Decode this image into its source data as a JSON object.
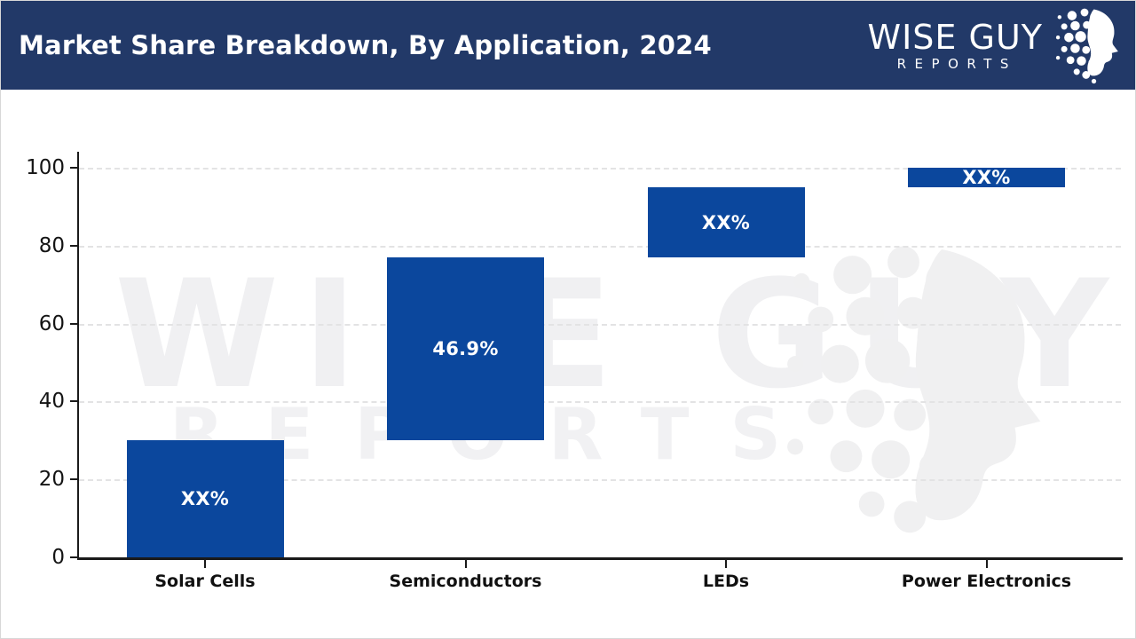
{
  "header": {
    "title": "Market Share Breakdown, By Application, 2024",
    "logo": {
      "line1": "WISE GUY",
      "line2": "REPORTS"
    }
  },
  "watermark": {
    "line1": "WISE GUY",
    "line2": "REPORTS"
  },
  "colors": {
    "header_bg": "#223968",
    "bar_fill": "#0b479d",
    "bar_label_text": "#ffffff",
    "gridline": "#e3e3e4",
    "axis": "#1a1a1a",
    "watermark": "#f0f0f2",
    "canvas_border": "#d8d8d8"
  },
  "chart_data": {
    "type": "bar",
    "subtype": "waterfall",
    "title": "Market Share Breakdown, By Application, 2024",
    "categories": [
      "Solar Cells",
      "Semiconductors",
      "LEDs",
      "Power Electronics"
    ],
    "bars": [
      {
        "category": "Solar Cells",
        "start": 0,
        "end": 30.1,
        "label": "XX%"
      },
      {
        "category": "Semiconductors",
        "start": 30.1,
        "end": 77.0,
        "label": "46.9%"
      },
      {
        "category": "LEDs",
        "start": 77.0,
        "end": 94.9,
        "label": "XX%"
      },
      {
        "category": "Power Electronics",
        "start": 94.9,
        "end": 100.0,
        "label": "XX%"
      }
    ],
    "xlabel": "",
    "ylabel": "",
    "ylim": [
      0,
      105
    ],
    "yticks": [
      0,
      20,
      40,
      60,
      80,
      100
    ],
    "grid": "dashed-horizontal",
    "legend": "none"
  }
}
